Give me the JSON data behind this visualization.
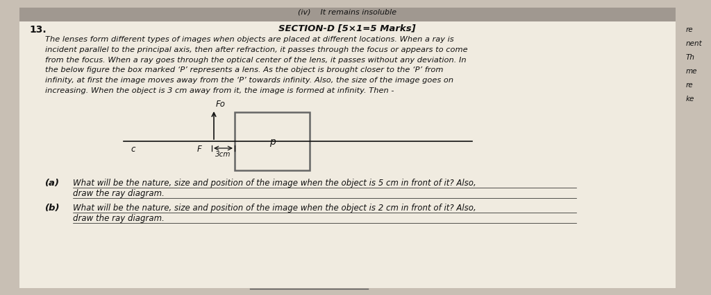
{
  "background_color": "#c8bfb4",
  "page_bg": "#f0ebe0",
  "question_number": "13.",
  "section_title": "SECTION-D [5×1=5 Marks]",
  "top_text_iv": "(iv)    It remains insoluble",
  "para_lines": [
    "The lenses form different types of images when objects are placed at different locations. When a ray is",
    "incident parallel to the principal axis, then after refraction, it passes through the focus or appears to come",
    "from the focus. When a ray goes through the optical center of the lens, it passes without any deviation. In",
    "the below figure the box marked ‘P’ represents a lens. As the object is brought closer to the ‘P’ from",
    "infinity, at first the image moves away from the ‘P’ towards infinity. Also, the size of the image goes on",
    "increasing. When the object is 3 cm away from it, the image is formed at infinity. Then -"
  ],
  "sub_a_label": "(a)",
  "sub_a_line1": "What will be the nature, size and position of the image when the object is 5 cm in front of it? Also,",
  "sub_a_line2": "draw the ray diagram.",
  "sub_b_label": "(b)",
  "sub_b_line1": "What will be the nature, size and position of the image when the object is 2 cm in front of it? Also,",
  "sub_b_line2": "draw the ray diagram.",
  "diagram": {
    "arrow_up_label": "Fo",
    "label_c": "c",
    "label_f": "F",
    "label_3cm": "3cm",
    "label_p": "p",
    "box_color": "#666666",
    "line_color": "#111111"
  },
  "font_color": "#111111",
  "right_texts": [
    "re",
    "nent",
    "Th",
    "me",
    "re",
    "ke"
  ]
}
